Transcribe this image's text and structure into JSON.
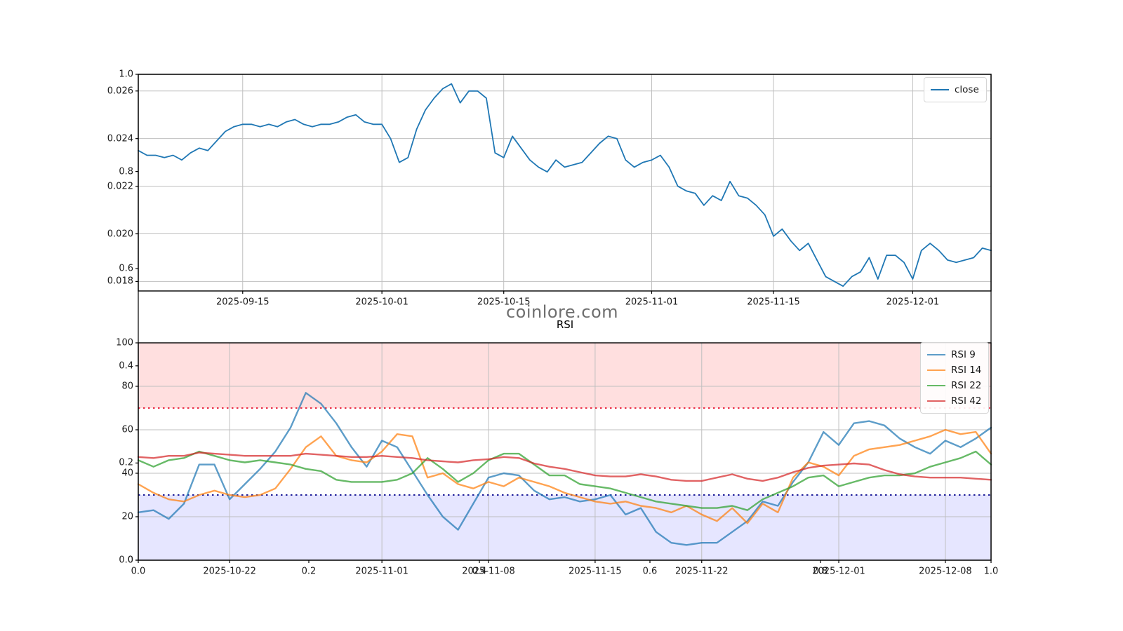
{
  "watermark": "coinlore.com",
  "colors": {
    "background": "#ffffff",
    "grid": "#bfbfbf",
    "spine": "#000000",
    "overbought_band": "rgba(255,30,30,0.14)",
    "oversold_band": "rgba(60,60,255,0.13)",
    "overbought_line": "#e8112d",
    "oversold_line": "#00008b",
    "watermark_text": "#6e6e6e"
  },
  "phantom_axis": {
    "x_ticks": [
      0,
      0.2,
      0.4,
      0.6,
      0.8,
      1.0
    ],
    "x_tick_labels": [
      "0.0",
      "0.2",
      "0.4",
      "0.6",
      "0.8",
      "1.0"
    ],
    "y_ticks": [
      1.0,
      0.8,
      0.6,
      0.4,
      0.2,
      0.0
    ],
    "y_tick_labels": [
      "1.0",
      "0.8",
      "0.6",
      "0.4",
      "0.2",
      "0.0"
    ]
  },
  "chart_data": [
    {
      "type": "line",
      "name": "price-chart",
      "title": "",
      "legend": {
        "position": "upper right",
        "entries": [
          "close"
        ]
      },
      "x_tick_labels": [
        "2025-09-15",
        "2025-10-01",
        "2025-10-15",
        "2025-11-01",
        "2025-11-15",
        "2025-12-01"
      ],
      "x_tick_indices": [
        12,
        28,
        42,
        59,
        73,
        89
      ],
      "y_ticks": [
        0.018,
        0.02,
        0.022,
        0.024,
        0.026
      ],
      "y_tick_labels": [
        "0.018",
        "0.020",
        "0.022",
        "0.024",
        "0.026"
      ],
      "ylim": [
        0.0176,
        0.0267
      ],
      "grid": true,
      "series": [
        {
          "name": "close",
          "color": "#1f77b4",
          "values": [
            0.0235,
            0.0233,
            0.0233,
            0.0232,
            0.0233,
            0.0231,
            0.0234,
            0.0236,
            0.0235,
            0.0239,
            0.0243,
            0.0245,
            0.0246,
            0.0246,
            0.0245,
            0.0246,
            0.0245,
            0.0247,
            0.0248,
            0.0246,
            0.0245,
            0.0246,
            0.0246,
            0.0247,
            0.0249,
            0.025,
            0.0247,
            0.0246,
            0.0246,
            0.024,
            0.023,
            0.0232,
            0.0244,
            0.0252,
            0.0257,
            0.0261,
            0.0263,
            0.0255,
            0.026,
            0.026,
            0.0257,
            0.0234,
            0.0232,
            0.0241,
            0.0236,
            0.0231,
            0.0228,
            0.0226,
            0.0231,
            0.0228,
            0.0229,
            0.023,
            0.0234,
            0.0238,
            0.0241,
            0.024,
            0.0231,
            0.0228,
            0.023,
            0.0231,
            0.0233,
            0.0228,
            0.022,
            0.0218,
            0.0217,
            0.0212,
            0.0216,
            0.0214,
            0.0222,
            0.0216,
            0.0215,
            0.0212,
            0.0208,
            0.0199,
            0.0202,
            0.0197,
            0.0193,
            0.0196,
            0.0189,
            0.0182,
            0.018,
            0.0178,
            0.0182,
            0.0184,
            0.019,
            0.0181,
            0.0191,
            0.0191,
            0.0188,
            0.0181,
            0.0193,
            0.0196,
            0.0193,
            0.0189,
            0.0188,
            0.0189,
            0.019,
            0.0194,
            0.0193
          ]
        }
      ]
    },
    {
      "type": "line",
      "name": "rsi-chart",
      "title": "RSI",
      "legend": {
        "position": "upper right",
        "entries": [
          "RSI 9",
          "RSI 14",
          "RSI 22",
          "RSI 42"
        ]
      },
      "x_tick_labels": [
        "2025-10-22",
        "2025-11-01",
        "2025-11-08",
        "2025-11-15",
        "2025-11-22",
        "2025-12-01",
        "2025-12-08"
      ],
      "x_tick_indices": [
        6,
        16,
        23,
        30,
        37,
        46,
        53
      ],
      "y_ticks": [
        0,
        20,
        40,
        60,
        80,
        100
      ],
      "y_tick_labels": [
        "0",
        "20",
        "40",
        "60",
        "80",
        "100"
      ],
      "ylim": [
        0,
        100
      ],
      "grid": true,
      "bands": [
        {
          "from": 70,
          "to": 100,
          "color": "rgba(255,30,30,0.14)"
        },
        {
          "from": 0,
          "to": 30,
          "color": "rgba(60,60,255,0.13)"
        }
      ],
      "ref_lines": [
        {
          "value": 70,
          "color": "#e8112d"
        },
        {
          "value": 30,
          "color": "#00008b"
        }
      ],
      "series": [
        {
          "name": "RSI 9",
          "color": "#1f77b4",
          "values": [
            22,
            23,
            19,
            26,
            44,
            44,
            28,
            35,
            42,
            50,
            61,
            77,
            72,
            63,
            52,
            43,
            55,
            52,
            41,
            30,
            20,
            14,
            26,
            38,
            40,
            39,
            32,
            28,
            29,
            27,
            28,
            30,
            21,
            24,
            13,
            8,
            7,
            8,
            8,
            13,
            18,
            27,
            25,
            36,
            45,
            59,
            53,
            63,
            64,
            62,
            56,
            52,
            49,
            55,
            52,
            56,
            61
          ]
        },
        {
          "name": "RSI 14",
          "color": "#ff7f0e",
          "values": [
            35,
            31,
            28,
            27,
            30,
            32,
            30,
            29,
            30,
            33,
            42,
            52,
            57,
            48,
            46,
            45,
            50,
            58,
            57,
            38,
            40,
            35,
            33,
            36,
            34,
            38,
            36,
            34,
            31,
            29,
            27,
            26,
            27,
            25,
            24,
            22,
            25,
            21,
            18,
            24,
            17,
            26,
            22,
            38,
            45,
            43,
            39,
            48,
            51,
            52,
            53,
            55,
            57,
            60,
            58,
            59,
            49
          ]
        },
        {
          "name": "RSI 22",
          "color": "#2ca02c",
          "values": [
            46,
            43,
            46,
            47,
            50,
            48,
            46,
            45,
            46,
            45,
            44,
            42,
            41,
            37,
            36,
            36,
            36,
            37,
            40,
            47,
            42,
            36,
            40,
            46,
            49,
            49,
            44,
            39,
            39,
            35,
            34,
            33,
            31,
            29,
            27,
            26,
            25,
            24,
            24,
            25,
            23,
            28,
            31,
            34,
            38,
            39,
            34,
            36,
            38,
            39,
            39,
            40,
            43,
            45,
            47,
            50,
            44
          ]
        },
        {
          "name": "RSI 42",
          "color": "#d62728",
          "values": [
            47.5,
            47,
            48,
            48,
            49.5,
            49,
            48.5,
            48,
            48,
            48,
            48,
            49,
            48.5,
            48,
            47.5,
            47.5,
            48,
            47.5,
            47,
            46,
            45.5,
            45,
            46,
            46.5,
            47.5,
            47,
            44.5,
            43,
            42,
            40.5,
            39,
            38.5,
            38.5,
            39.5,
            38.5,
            37,
            36.5,
            36.5,
            38,
            39.5,
            37.5,
            36.5,
            38,
            40.5,
            42.5,
            43.5,
            44,
            44.5,
            44,
            41.5,
            39.5,
            38.5,
            38,
            38,
            38,
            37.5,
            37
          ]
        }
      ]
    }
  ]
}
